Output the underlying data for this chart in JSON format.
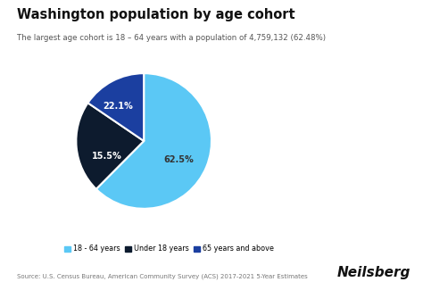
{
  "title": "Washington population by age cohort",
  "subtitle": "The largest age cohort is 18 – 64 years with a population of 4,759,132 (62.48%)",
  "slices": [
    62.5,
    22.1,
    15.5
  ],
  "labels": [
    "18 - 64 years",
    "Under 18 years",
    "65 years and above"
  ],
  "colors": [
    "#5BC8F5",
    "#0D1B2E",
    "#1B3FA0"
  ],
  "pct_labels": [
    "62.5%",
    "22.1%",
    "15.5%"
  ],
  "pct_colors": [
    "#1a1a1a",
    "#ffffff",
    "#ffffff"
  ],
  "source": "Source: U.S. Census Bureau, American Community Survey (ACS) 2017-2021 5-Year Estimates",
  "brand": "Neilsberg",
  "background_color": "#ffffff",
  "startangle": 90
}
